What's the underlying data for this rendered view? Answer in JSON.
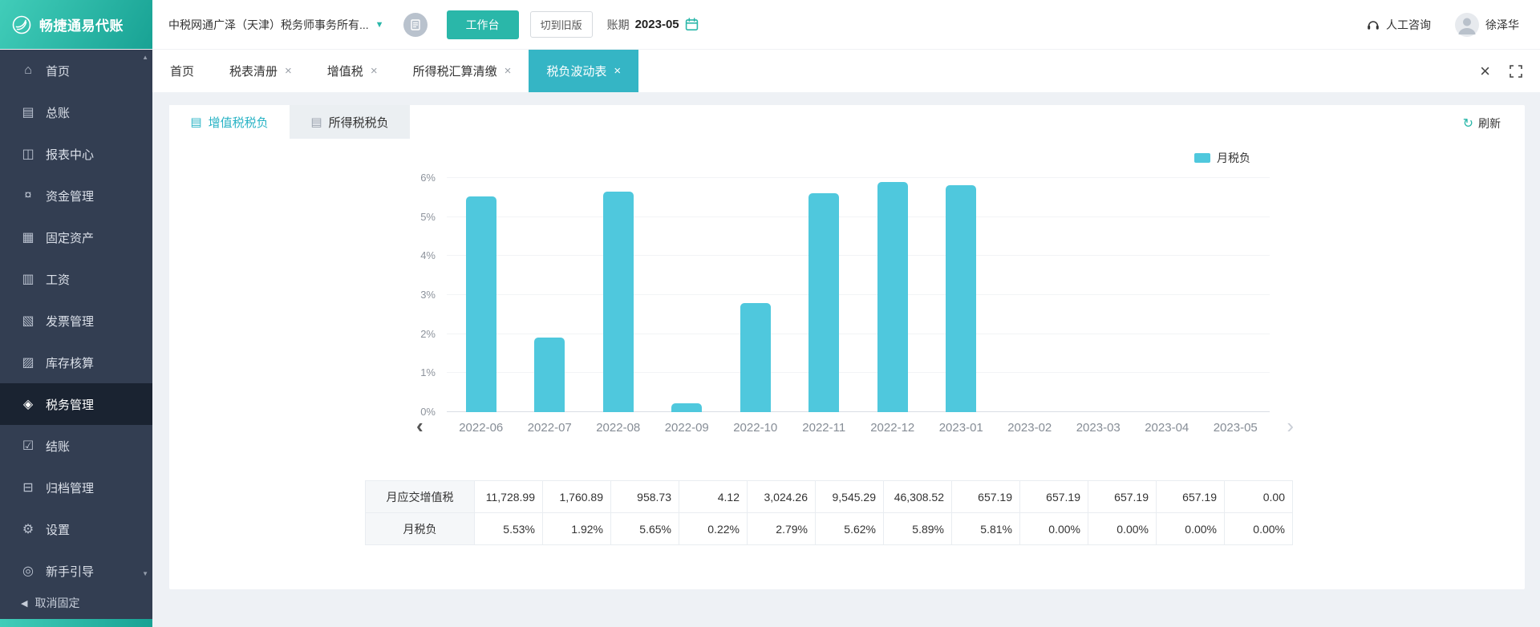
{
  "app": {
    "logo_text": "畅捷通易代账"
  },
  "header": {
    "company_name": "中税网通广泽（天津）税务师事务所有...",
    "workbench_button": "工作台",
    "old_version_button": "切到旧版",
    "period_label": "账期",
    "period_value": "2023-05",
    "support_label": "人工咨询",
    "user_name": "徐泽华"
  },
  "tabbar": {
    "tabs": [
      {
        "id": "home",
        "label": "首页",
        "closable": false,
        "active": false
      },
      {
        "id": "tax-form-register",
        "label": "税表清册",
        "closable": true,
        "active": false
      },
      {
        "id": "vat",
        "label": "增值税",
        "closable": true,
        "active": false
      },
      {
        "id": "income-tax-settlement",
        "label": "所得税汇算清缴",
        "closable": true,
        "active": false
      },
      {
        "id": "tax-burden-fluctuation",
        "label": "税负波动表",
        "closable": true,
        "active": true
      }
    ]
  },
  "sidebar": {
    "items": [
      {
        "id": "home",
        "label": "首页",
        "icon": "home",
        "active": false
      },
      {
        "id": "general-ledger",
        "label": "总账",
        "icon": "ledger",
        "active": false
      },
      {
        "id": "report-center",
        "label": "报表中心",
        "icon": "reports",
        "active": false
      },
      {
        "id": "funds-management",
        "label": "资金管理",
        "icon": "funds",
        "active": false
      },
      {
        "id": "fixed-assets",
        "label": "固定资产",
        "icon": "fixed-assets",
        "active": false
      },
      {
        "id": "payroll",
        "label": "工资",
        "icon": "payroll",
        "active": false
      },
      {
        "id": "invoice-management",
        "label": "发票管理",
        "icon": "invoices",
        "active": false
      },
      {
        "id": "inventory-accounting",
        "label": "库存核算",
        "icon": "inventory",
        "active": false
      },
      {
        "id": "tax-management",
        "label": "税务管理",
        "icon": "tax",
        "active": true
      },
      {
        "id": "closing",
        "label": "结账",
        "icon": "closing",
        "active": false
      },
      {
        "id": "archive-management",
        "label": "归档管理",
        "icon": "archive",
        "active": false
      },
      {
        "id": "settings",
        "label": "设置",
        "icon": "settings",
        "active": false
      },
      {
        "id": "beginner-guide",
        "label": "新手引导",
        "icon": "guide",
        "active": false
      }
    ],
    "unpin_label": "取消固定"
  },
  "content": {
    "subtabs": [
      {
        "id": "vat-tax-burden",
        "label": "增值税税负",
        "active": true
      },
      {
        "id": "income-tax-burden",
        "label": "所得税税负",
        "active": false
      }
    ],
    "refresh_label": "刷新"
  },
  "chart_data": {
    "type": "bar",
    "legend": [
      "月税负"
    ],
    "legend_position": "top-right",
    "categories": [
      "2022-06",
      "2022-07",
      "2022-08",
      "2022-09",
      "2022-10",
      "2022-11",
      "2022-12",
      "2023-01",
      "2023-02",
      "2023-03",
      "2023-04",
      "2023-05"
    ],
    "series": [
      {
        "name": "月税负",
        "values": [
          5.53,
          1.92,
          5.65,
          0.22,
          2.79,
          5.62,
          5.89,
          5.81,
          0,
          0,
          0,
          0
        ]
      }
    ],
    "value_unit": "%",
    "ylim": [
      0,
      6
    ],
    "y_ticks": [
      "0%",
      "1%",
      "2%",
      "3%",
      "4%",
      "5%",
      "6%"
    ],
    "grid": true,
    "bar_color": "#4fc8dd"
  },
  "table": {
    "rows": [
      {
        "header": "月应交增值税",
        "values": [
          "11,728.99",
          "1,760.89",
          "958.73",
          "4.12",
          "3,024.26",
          "9,545.29",
          "46,308.52",
          "657.19",
          "657.19",
          "657.19",
          "657.19",
          "0.00"
        ]
      },
      {
        "header": "月税负",
        "values": [
          "5.53%",
          "1.92%",
          "5.65%",
          "0.22%",
          "2.79%",
          "5.62%",
          "5.89%",
          "5.81%",
          "0.00%",
          "0.00%",
          "0.00%",
          "0.00%"
        ]
      }
    ]
  },
  "colors": {
    "brand_teal": "#2ab7a9",
    "active_tab_teal": "#35b5c5",
    "subtab_active_text": "#29b3c5",
    "bar_cyan": "#4fc8dd",
    "sidebar_bg": "#333e52",
    "sidebar_active_bg": "#1a2331"
  }
}
